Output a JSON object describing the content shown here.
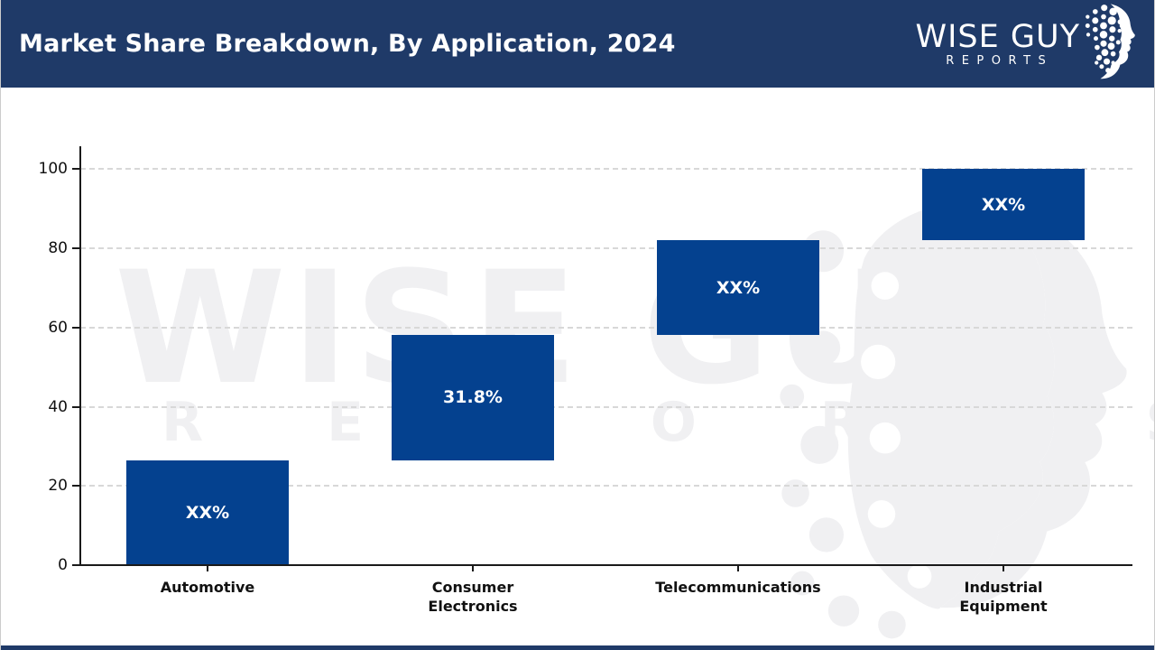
{
  "header": {
    "title": "Market Share Breakdown, By Application, 2024",
    "logo": {
      "wordmark": "WISE GUY",
      "subtitle": "REPORTS"
    }
  },
  "watermark": {
    "wordmark": "WISE GUY.",
    "subtitle": "REPORTS"
  },
  "footer": {},
  "chart_data": {
    "type": "bar",
    "subtype": "waterfall",
    "title": "Market Share Breakdown, By Application, 2024",
    "categories": [
      "Automotive",
      "Consumer Electronics",
      "Telecommunications",
      "Industrial Equipment"
    ],
    "category_label_lines": [
      [
        "Automotive"
      ],
      [
        "Consumer",
        "Electronics"
      ],
      [
        "Telecommunications"
      ],
      [
        "Industrial",
        "Equipment"
      ]
    ],
    "bar_labels": [
      "XX%",
      "31.8%",
      "XX%",
      "XX%"
    ],
    "values": [
      26.4,
      31.8,
      23.8,
      18.0
    ],
    "cumulative_start": [
      0,
      26.4,
      58.2,
      82.0
    ],
    "unit": "percent",
    "ylim": [
      0,
      100
    ],
    "yticks": [
      0,
      20,
      40,
      60,
      80,
      100
    ],
    "xlabel": "",
    "ylabel": "",
    "grid": "horizontal-dashed",
    "legend": "none",
    "bar_color": "#04418f",
    "bar_label_color": "#ffffff"
  },
  "colors": {
    "header_bg": "#1f3a68",
    "footer_bg": "#1f3a68",
    "axis": "#1a1a1a",
    "gridline": "#d8d8d8",
    "watermark": "#f0f0f2",
    "page_border": "#cccccc"
  }
}
